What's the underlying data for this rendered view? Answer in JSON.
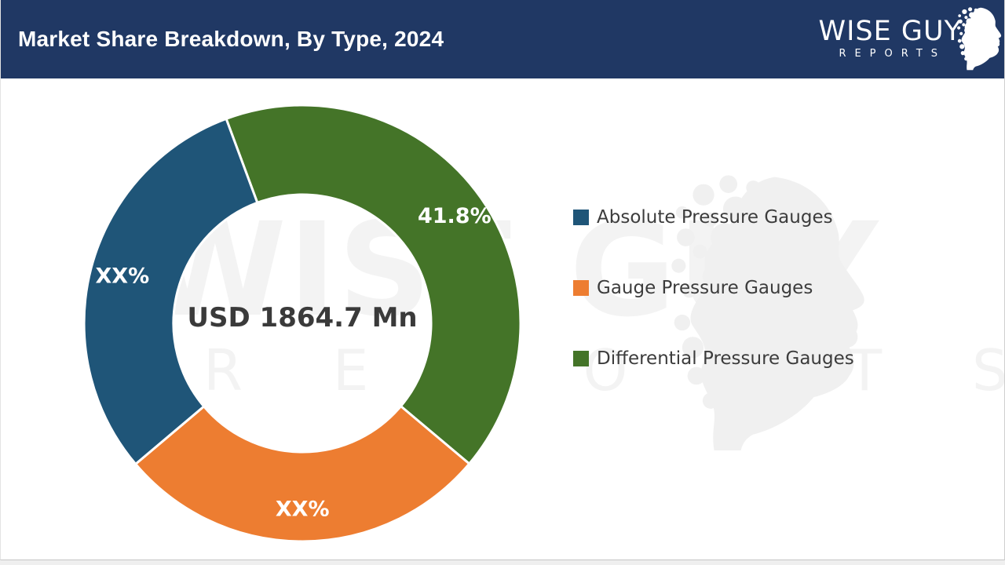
{
  "header": {
    "title": "Market Share Breakdown, By Type, 2024",
    "background_color": "#203864",
    "logo": {
      "name_line": "WISE GUY",
      "reports_line": "REPORTS"
    }
  },
  "watermark": {
    "large_text": "WISE GUY",
    "small_text": "R E P O R T S"
  },
  "chart_data": {
    "type": "pie",
    "subtype": "donut",
    "title": "Market Share Breakdown, By Type, 2024",
    "center_label": "USD 1864.7 Mn",
    "start_angle_deg": -20.4,
    "rotation": "clockwise",
    "legend_position": "right",
    "separator_color": "#ffffff",
    "label_color": "#ffffff",
    "slices": [
      {
        "label": "Absolute Pressure Gauges",
        "display_pct": "XX%",
        "value_pct_estimated": 30.5,
        "color": "#1F5578"
      },
      {
        "label": "Gauge Pressure Gauges",
        "display_pct": "XX%",
        "value_pct_estimated": 27.7,
        "color": "#ED7D31"
      },
      {
        "label": "Differential Pressure Gauges",
        "display_pct": "41.8%",
        "value_pct_estimated": 41.8,
        "color": "#447428"
      }
    ]
  }
}
